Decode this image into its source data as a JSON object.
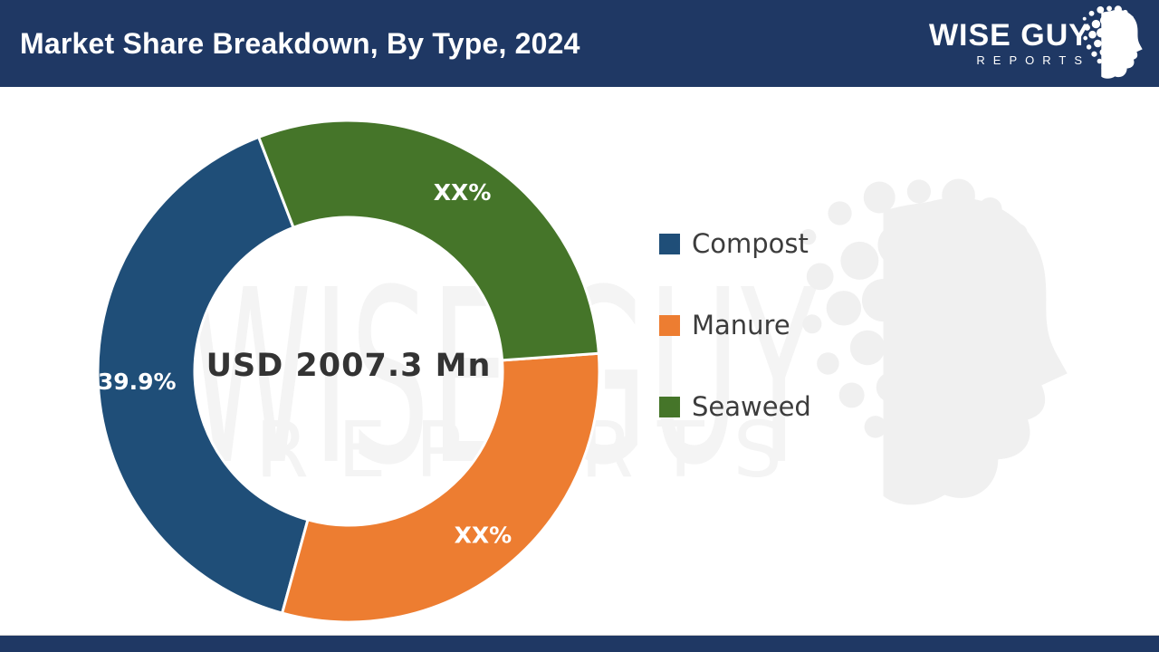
{
  "header": {
    "title": "Market Share Breakdown, By Type, 2024",
    "logo": {
      "line1": "WISE GUY",
      "line2": "REPORTS"
    }
  },
  "chart_data": {
    "type": "pie",
    "variant": "donut",
    "title": "Market Share Breakdown, By Type, 2024",
    "center_label": "USD 2007.3 Mn",
    "legend_position": "right",
    "start_angle_deg": -21,
    "direction": "counterclockwise",
    "slices": [
      {
        "name": "Compost",
        "value": 39.9,
        "label": "39.9%",
        "color": "#1F4E78"
      },
      {
        "name": "Manure",
        "value": 30.4,
        "label": "XX%",
        "color": "#ED7D31"
      },
      {
        "name": "Seaweed",
        "value": 29.7,
        "label": "XX%",
        "color": "#457529"
      }
    ]
  },
  "watermark": {
    "line1": "WISE GUY",
    "line2": "REPORTS"
  },
  "colors": {
    "header_bg": "#1F3864",
    "footer_bg": "#1F3864",
    "percent_label": "#FFFFFF",
    "center_text": "#333333",
    "legend_text": "#3C3C3C",
    "watermark": "#F4F4F4",
    "watermark_face": "#F0F0F0",
    "logo_white": "#FFFFFF"
  }
}
